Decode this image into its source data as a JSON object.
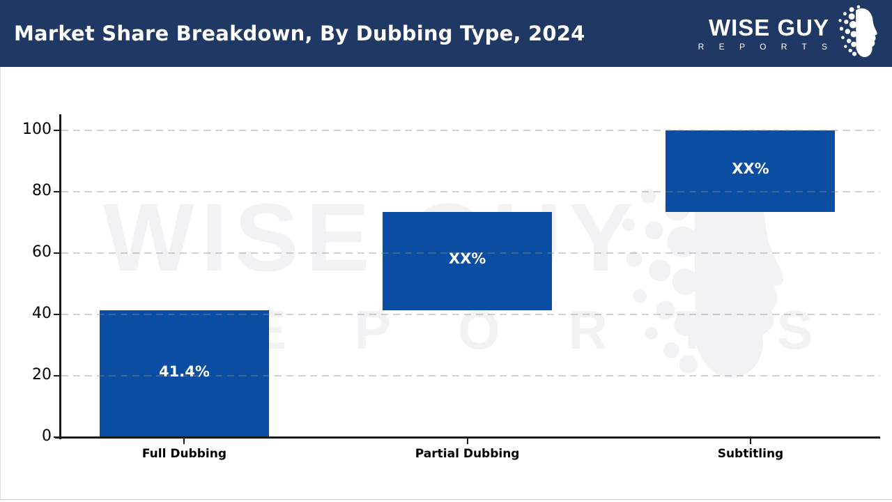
{
  "header": {
    "title": "Market Share Breakdown, By Dubbing Type, 2024",
    "logo": {
      "name": "WISE GUY",
      "sub": "R E P O R T S",
      "icon": "dotted-head-profile-icon"
    }
  },
  "watermark": {
    "line1": "WISE GUY",
    "line2": "R E P O R T S",
    "icon": "dotted-head-profile-watermark"
  },
  "colors": {
    "header_bg": "#203864",
    "bar": "#0b4da2",
    "axis": "#1a1a1a",
    "grid": "#c8c8c8",
    "watermark": "#f2f2f5",
    "label_on_bar": "#ffffff",
    "tick_label": "#000000"
  },
  "chart_data": {
    "type": "bar",
    "subtype": "waterfall",
    "title": "Market Share Breakdown, By Dubbing Type, 2024",
    "categories": [
      "Full Dubbing",
      "Partial Dubbing",
      "Subtitling"
    ],
    "segments": [
      {
        "category": "Full Dubbing",
        "start": 0,
        "end": 41.4,
        "label": "41.4%"
      },
      {
        "category": "Partial Dubbing",
        "start": 41.4,
        "end": 73.4,
        "label": "XX%"
      },
      {
        "category": "Subtitling",
        "start": 73.4,
        "end": 100,
        "label": "XX%"
      }
    ],
    "yticks": [
      0,
      20,
      40,
      60,
      80,
      100
    ],
    "ylim": [
      0,
      105
    ],
    "xlabel": "",
    "ylabel": "",
    "grid": "dashed-horizontal",
    "legend": "none"
  }
}
